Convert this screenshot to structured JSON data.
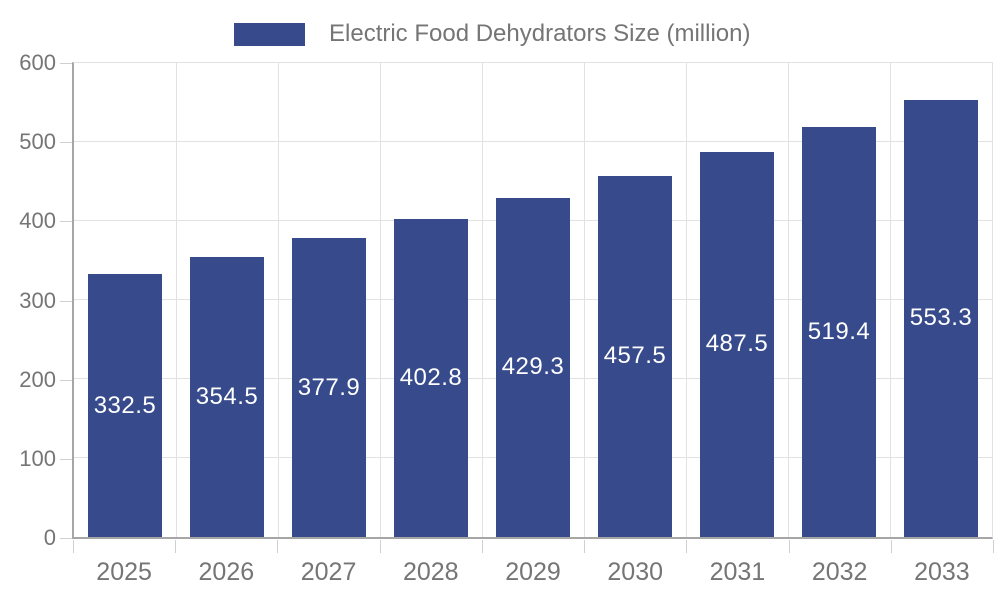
{
  "chart_data": {
    "type": "bar",
    "title": "Electric Food Dehydrators Size (million)",
    "categories": [
      "2025",
      "2026",
      "2027",
      "2028",
      "2029",
      "2030",
      "2031",
      "2032",
      "2033"
    ],
    "values": [
      332.5,
      354.5,
      377.9,
      402.8,
      429.3,
      457.5,
      487.5,
      519.4,
      553.3
    ],
    "series": [
      {
        "name": "Electric Food Dehydrators Size (million)",
        "values": [
          332.5,
          354.5,
          377.9,
          402.8,
          429.3,
          457.5,
          487.5,
          519.4,
          553.3
        ]
      }
    ],
    "xlabel": "",
    "ylabel": "",
    "ylim": [
      0,
      600
    ],
    "y_ticks": [
      0,
      100,
      200,
      300,
      400,
      500,
      600
    ],
    "grid": true,
    "legend_position": "top",
    "value_labels_inside_bars": true,
    "colors": {
      "bar": "#374b8c",
      "grid": "#e2e2e2",
      "axis": "#a6a6a6",
      "tick": "#d0d0d0",
      "tick_label": "#757575",
      "value_label": "#ffffff",
      "background": "#ffffff"
    }
  }
}
